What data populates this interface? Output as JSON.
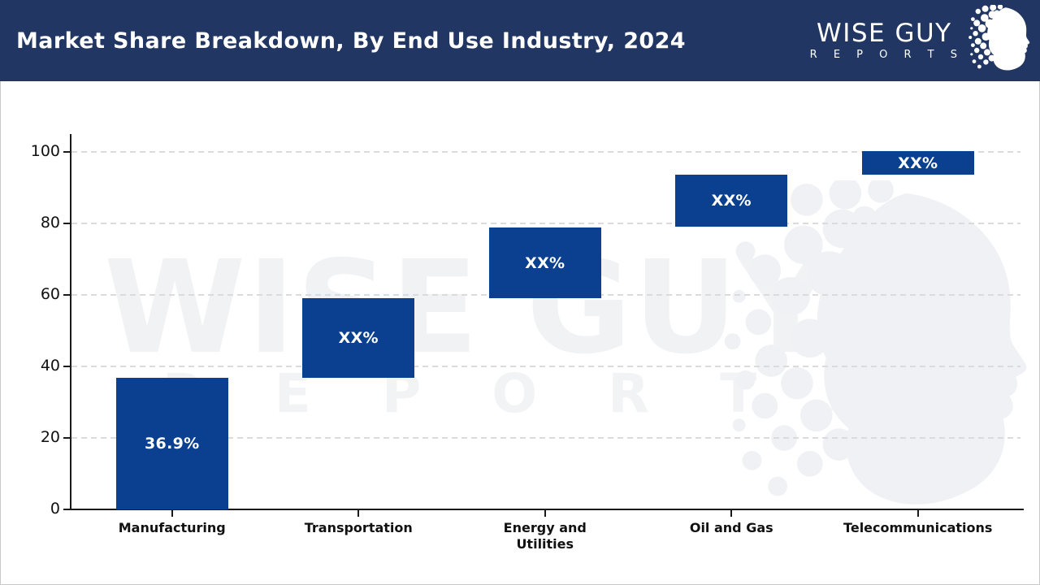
{
  "header": {
    "title": "Market Share Breakdown, By End Use Industry, 2024",
    "bg_color": "#213663",
    "logo": {
      "wordmark": "WISE GUY",
      "subtext": "R E P O R T S",
      "head_icon": "dotted-face-profile"
    }
  },
  "watermark": {
    "wordmark": "WISE GUY",
    "subtext": "R E P O R T S",
    "head_icon": "dotted-face-profile"
  },
  "chart_data": {
    "type": "bar",
    "subtype": "waterfall",
    "title": "Market Share Breakdown, By End Use Industry, 2024",
    "categories": [
      "Manufacturing",
      "Transportation",
      "Energy and\nUtilities",
      "Oil and Gas",
      "Telecommunications"
    ],
    "segments": [
      {
        "category": "Manufacturing",
        "start": 0,
        "end": 36.9,
        "label": "36.9%"
      },
      {
        "category": "Transportation",
        "start": 36.9,
        "end": 59.0,
        "label": "XX%"
      },
      {
        "category": "Energy and Utilities",
        "start": 59.0,
        "end": 78.8,
        "label": "XX%"
      },
      {
        "category": "Oil and Gas",
        "start": 79.0,
        "end": 93.6,
        "label": "XX%"
      },
      {
        "category": "Telecommunications",
        "start": 93.6,
        "end": 100.2,
        "label": "XX%"
      }
    ],
    "yticks": [
      0,
      20,
      40,
      60,
      80,
      100
    ],
    "ylim": [
      0,
      104
    ],
    "xlabel": "",
    "ylabel": "",
    "bar_color": "#0b4090",
    "grid": "horizontal-dashed",
    "legend": "none"
  }
}
